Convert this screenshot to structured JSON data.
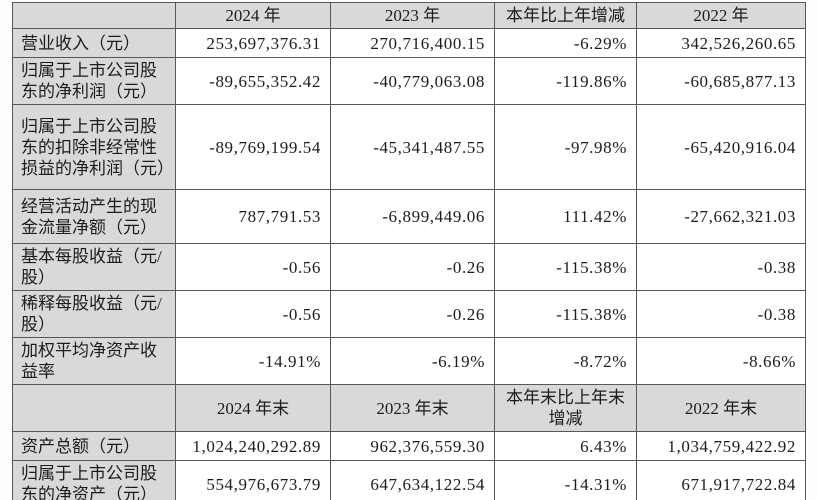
{
  "colors": {
    "header_bg": "#d9d9d9",
    "cell_bg": "#ffffff",
    "border": "#585858",
    "text": "#1c1c1c"
  },
  "annual": {
    "headers": [
      "",
      "2024 年",
      "2023 年",
      "本年比上年增减",
      "2022 年"
    ],
    "rows": [
      {
        "label": "营业收入（元）",
        "values": [
          "253,697,376.31",
          "270,716,400.15",
          "-6.29%",
          "342,526,260.65"
        ]
      },
      {
        "label": "归属于上市公司股东的净利润（元）",
        "values": [
          "-89,655,352.42",
          "-40,779,063.08",
          "-119.86%",
          "-60,685,877.13"
        ]
      },
      {
        "label": "归属于上市公司股东的扣除非经常性损益的净利润（元）",
        "values": [
          "-89,769,199.54",
          "-45,341,487.55",
          "-97.98%",
          "-65,420,916.04"
        ]
      },
      {
        "label": "经营活动产生的现金流量净额（元）",
        "values": [
          "787,791.53",
          "-6,899,449.06",
          "111.42%",
          "-27,662,321.03"
        ]
      },
      {
        "label": "基本每股收益（元/股）",
        "values": [
          "-0.56",
          "-0.26",
          "-115.38%",
          "-0.38"
        ]
      },
      {
        "label": "稀释每股收益（元/股）",
        "values": [
          "-0.56",
          "-0.26",
          "-115.38%",
          "-0.38"
        ]
      },
      {
        "label": "加权平均净资产收益率",
        "values": [
          "-14.91%",
          "-6.19%",
          "-8.72%",
          "-8.66%"
        ]
      }
    ]
  },
  "eoy": {
    "headers": [
      "",
      "2024 年末",
      "2023 年末",
      "本年末比上年末增减",
      "2022 年末"
    ],
    "rows": [
      {
        "label": "资产总额（元）",
        "values": [
          "1,024,240,292.89",
          "962,376,559.30",
          "6.43%",
          "1,034,759,422.92"
        ]
      },
      {
        "label": "归属于上市公司股东的净资产（元）",
        "values": [
          "554,976,673.79",
          "647,634,122.54",
          "-14.31%",
          "671,917,722.84"
        ]
      }
    ]
  }
}
